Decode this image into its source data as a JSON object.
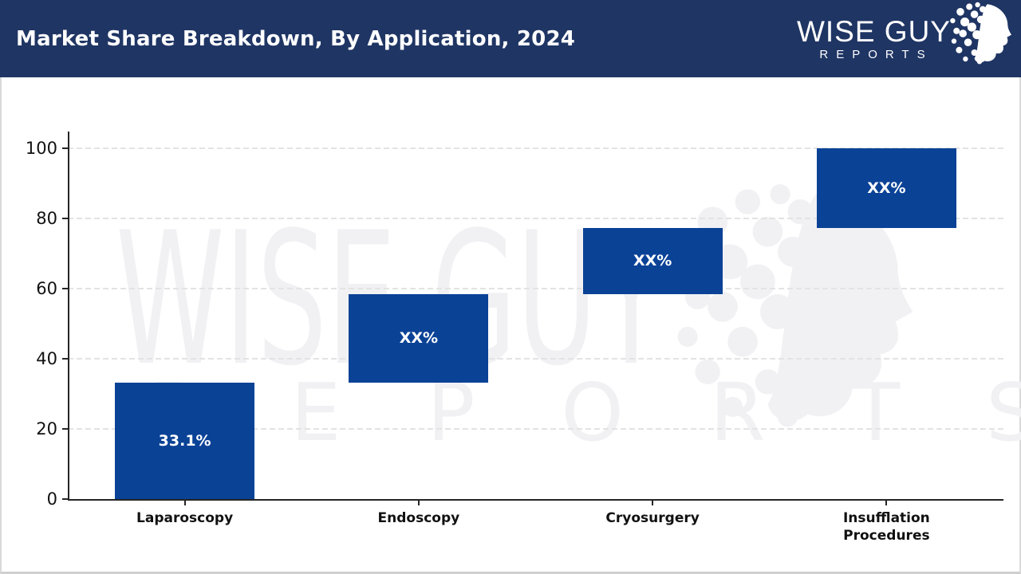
{
  "header": {
    "title": "Market Share Breakdown, By Application, 2024",
    "logo": {
      "line1": "WISE GUY",
      "line2": "REPORTS"
    }
  },
  "watermark": {
    "line1": "WISE GUY",
    "line2": "REPORTS"
  },
  "chart_data": {
    "type": "bar",
    "subtype": "waterfall",
    "title": "Market Share Breakdown, By Application, 2024",
    "categories": [
      "Laparoscopy",
      "Endoscopy",
      "Cryosurgery",
      "Insufflation\nProcedures"
    ],
    "segments": [
      {
        "category": "Laparoscopy",
        "start": 0,
        "end": 33.1,
        "value": 33.1,
        "label": "33.1%"
      },
      {
        "category": "Endoscopy",
        "start": 33.1,
        "end": 58.5,
        "value": 25.4,
        "label": "XX%"
      },
      {
        "category": "Cryosurgery",
        "start": 58.5,
        "end": 77.3,
        "value": 18.8,
        "label": "XX%"
      },
      {
        "category": "Insufflation Procedures",
        "start": 77.3,
        "end": 100,
        "value": 22.7,
        "label": "XX%"
      }
    ],
    "xlabel": "",
    "ylabel": "",
    "ylim": [
      0,
      100
    ],
    "yticks": [
      0,
      20,
      40,
      60,
      80,
      100
    ],
    "grid": "horizontal-dashed",
    "legend": "none",
    "bar_color": "#0a4296",
    "bar_label_color": "#ffffff"
  },
  "colors": {
    "header_bg": "#1f3564",
    "bar": "#0a4296",
    "watermark": "#f1f1f4",
    "gridline": "#e3e3e3",
    "axis": "#262626",
    "tick_text": "#111111",
    "title_text": "#ffffff"
  }
}
